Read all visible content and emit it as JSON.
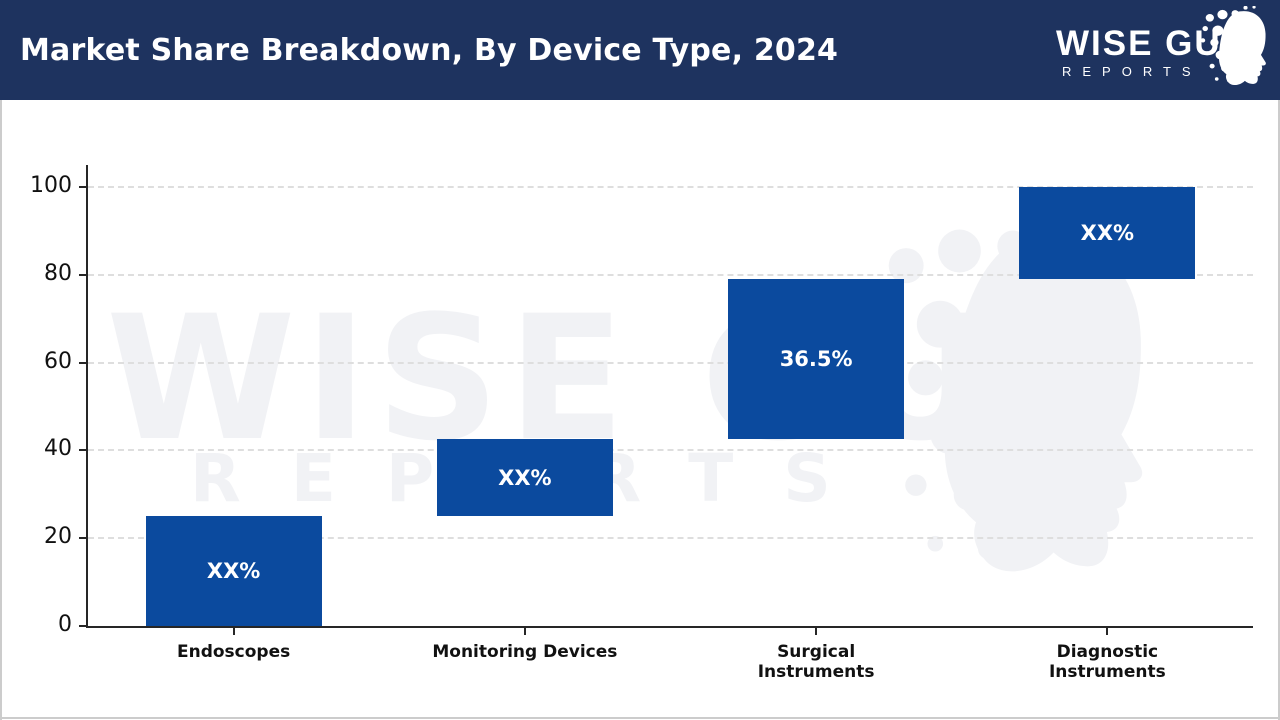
{
  "header": {
    "title": "Market Share Breakdown, By Device Type, 2024",
    "logo": {
      "name": "WISE GUY",
      "sub": "REPORTS"
    }
  },
  "watermark": {
    "line1": "WISE GU",
    "line2": "REPORTS"
  },
  "colors": {
    "header_bg": "#1e335f",
    "bar": "#0b4a9e",
    "watermark": "#f1f2f5",
    "gridline": "#dedede",
    "axis": "#262626"
  },
  "chart_data": {
    "type": "bar",
    "subtype": "floating-waterfall",
    "title": "Market Share Breakdown, By Device Type, 2024",
    "categories": [
      "Endoscopes",
      "Monitoring Devices",
      "Surgical\nInstruments",
      "Diagnostic\nInstruments"
    ],
    "bars": [
      {
        "category": "Endoscopes",
        "start": 0,
        "end": 25,
        "height": 25,
        "label": "XX%"
      },
      {
        "category": "Monitoring Devices",
        "start": 25,
        "end": 42.5,
        "height": 17.5,
        "label": "XX%"
      },
      {
        "category": "Surgical Instruments",
        "start": 42.5,
        "end": 79,
        "height": 36.5,
        "label": "36.5%"
      },
      {
        "category": "Diagnostic Instruments",
        "start": 79,
        "end": 100,
        "height": 21,
        "label": "XX%"
      }
    ],
    "yticks": [
      0,
      20,
      40,
      60,
      80,
      100
    ],
    "ylim": [
      0,
      105
    ],
    "xlabel": "",
    "ylabel": "",
    "bar_color": "#0b4a9e",
    "grid": "horizontal-dashed",
    "legend": "none"
  }
}
